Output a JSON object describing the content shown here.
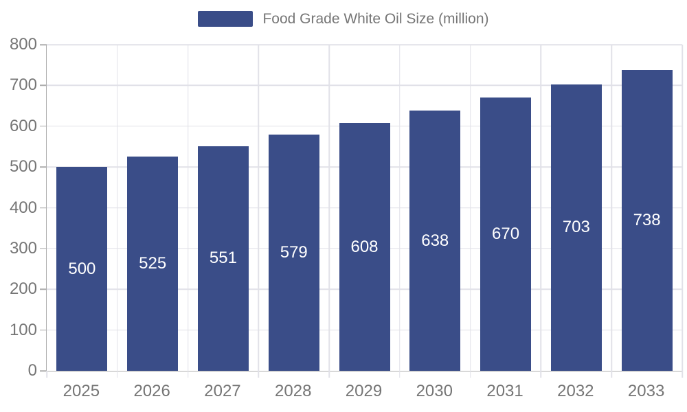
{
  "chart_data": {
    "type": "bar",
    "title": "",
    "legend": "Food Grade White Oil Size (million)",
    "categories": [
      "2025",
      "2026",
      "2027",
      "2028",
      "2029",
      "2030",
      "2031",
      "2032",
      "2033"
    ],
    "values": [
      500,
      525,
      551,
      579,
      608,
      638,
      670,
      703,
      738
    ],
    "xlabel": "",
    "ylabel": "",
    "ylim": [
      0,
      800
    ],
    "yticks": [
      0,
      100,
      200,
      300,
      400,
      500,
      600,
      700,
      800
    ],
    "grid": true,
    "legend_position": "top",
    "value_labels": "inside-center"
  },
  "colors": {
    "bar": "#3A4D88",
    "bar_label": "#FFFFFF",
    "axis_text": "#757575",
    "grid_line": "#E1E1E8",
    "axis_line": "#ADADAD"
  }
}
